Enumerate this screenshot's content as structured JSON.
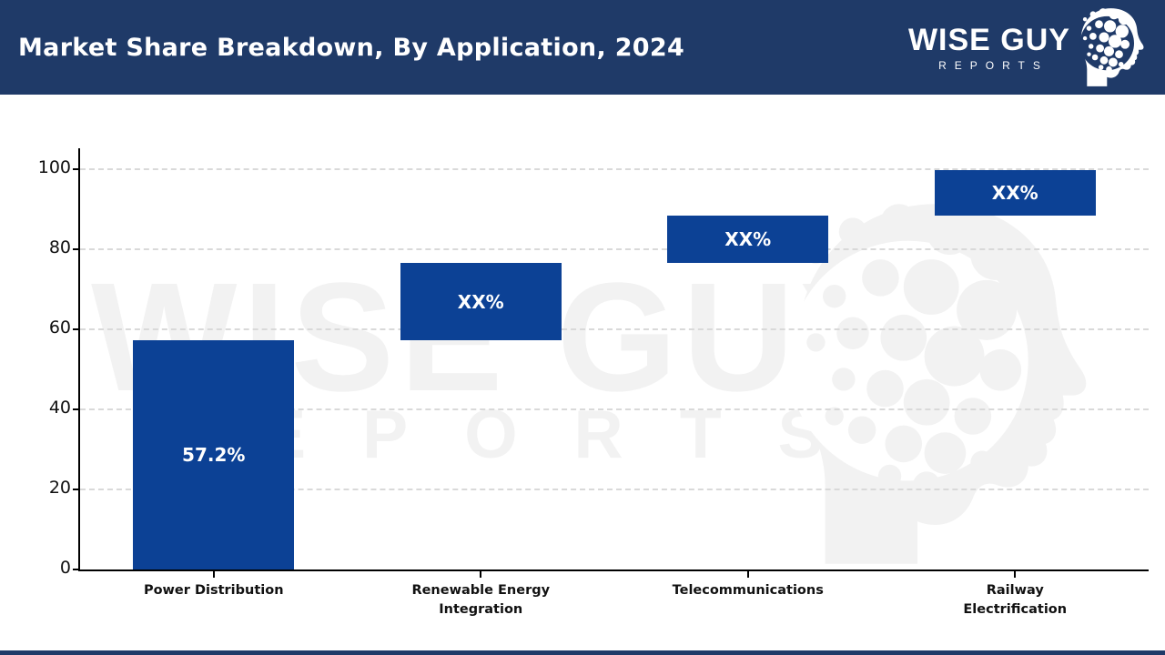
{
  "header": {
    "title": "Market Share Breakdown, By Application, 2024",
    "logo": {
      "wordmark": "WISE GUY",
      "subtext": "REPORTS"
    }
  },
  "watermark": {
    "line1": "WISE GUY",
    "line2": "REPORTS"
  },
  "chart_data": {
    "type": "bar",
    "subtype": "waterfall",
    "title": "Market Share Breakdown, By Application, 2024",
    "categories": [
      [
        "Power Distribution"
      ],
      [
        "Renewable Energy",
        "Integration"
      ],
      [
        "Telecommunications"
      ],
      [
        "Railway",
        "Electrification"
      ]
    ],
    "segments": [
      {
        "category": "Power Distribution",
        "label": "57.2%",
        "start": 0,
        "end": 57.2
      },
      {
        "category": "Renewable Energy Integration",
        "label": "XX%",
        "start": 57.2,
        "end": 76.5
      },
      {
        "category": "Telecommunications",
        "label": "XX%",
        "start": 76.5,
        "end": 88.5
      },
      {
        "category": "Railway Electrification",
        "label": "XX%",
        "start": 88.5,
        "end": 99.8
      }
    ],
    "yticks": [
      0,
      20,
      40,
      60,
      80,
      100
    ],
    "ylim": [
      0,
      105
    ],
    "xlabel": "",
    "ylabel": "",
    "grid": "horizontal-dashed",
    "legend": "none",
    "bar_color": "#0c4195",
    "bar_label_color": "#ffffff"
  },
  "colors": {
    "header_bg": "#1f3a68",
    "footer_bg": "#1f3a68",
    "bar": "#0c4195",
    "grid": "#d9d9d9",
    "axis": "#000000",
    "watermark": "#f2f2f2"
  }
}
